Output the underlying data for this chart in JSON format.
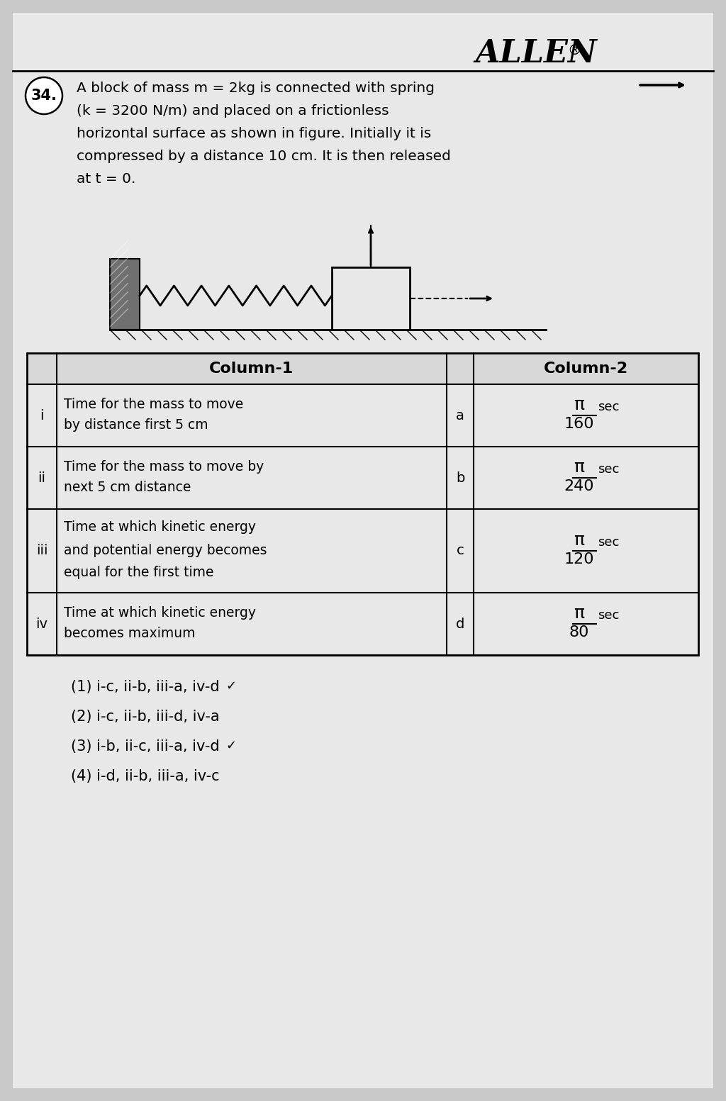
{
  "bg_color": "#c8c8c8",
  "page_color": "#e8e8e8",
  "logo_text": "ALLEN",
  "logo_reg": "®",
  "q_num": "34.",
  "q_text": [
    "A block of mass m = 2kg is connected with spring",
    "(k = 3200 N/m) and placed on a frictionless",
    "horizontal surface as shown in figure. Initially it is",
    "compressed by a distance 10 cm. It is then released",
    "at t = 0."
  ],
  "col1_header": "Column-1",
  "col2_header": "Column-2",
  "rows": [
    {
      "num": "i",
      "col1": [
        "Time for the mass to move",
        "by distance first 5 cm"
      ],
      "letter": "a",
      "numer": "π",
      "denom": "160",
      "unit": "sec"
    },
    {
      "num": "ii",
      "col1": [
        "Time for the mass to move by",
        "next 5 cm distance"
      ],
      "letter": "b",
      "numer": "π",
      "denom": "240",
      "unit": "sec"
    },
    {
      "num": "iii",
      "col1": [
        "Time at which kinetic energy",
        "and potential energy becomes",
        "equal for the first time"
      ],
      "letter": "c",
      "numer": "π",
      "denom": "120",
      "unit": "sec"
    },
    {
      "num": "iv",
      "col1": [
        "Time at which kinetic energy",
        "becomes maximum"
      ],
      "letter": "d",
      "numer": "π",
      "denom": "80",
      "unit": "sec"
    }
  ],
  "options": [
    "(1) i-c, ii-b, iii-a, iv-d",
    "(2) i-c, ii-b, iii-d, iv-a",
    "(3) i-b, ii-c, iii-a, iv-d",
    "(4) i-d, ii-b, iii-a, iv-c"
  ],
  "tick_options": [
    0,
    2
  ]
}
